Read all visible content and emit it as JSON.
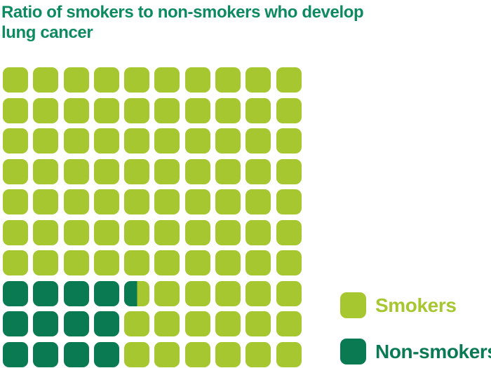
{
  "title": {
    "full_text": "Ratio of smokers to non-smokers who develop lung cancer",
    "line1": "Ratio of smokers to non-smokers who develop",
    "line2": "lung cancer"
  },
  "colors": {
    "background": "#ffffff",
    "smokers": "#a6c72f",
    "non_smokers": "#0a7a53",
    "title_text": "#0e8a61"
  },
  "legend": {
    "items": [
      {
        "label": "Smokers",
        "color": "#a6c72f"
      },
      {
        "label": "Non-smokers",
        "color": "#0a7a53"
      }
    ]
  },
  "chart_data": {
    "type": "waffle",
    "title": "Ratio of smokers to non-smokers who develop lung cancer",
    "grid": {
      "rows": 10,
      "columns": 10,
      "total_cells": 100,
      "cell_unit_percent": 1
    },
    "series": [
      {
        "name": "Smokers",
        "cells": 87.5,
        "percent": 87.5,
        "color": "#a6c72f"
      },
      {
        "name": "Non-smokers",
        "cells": 12.5,
        "percent": 12.5,
        "color": "#0a7a53"
      }
    ],
    "ratio_smokers_to_non_smokers": "7:1",
    "legend_position": "bottom-right",
    "rows_pattern": [
      "SSSSSSSSSS",
      "SSSSSSSSSS",
      "SSSSSSSSSS",
      "SSSSSSSSSS",
      "SSSSSSSSSS",
      "SSSSSSSSSS",
      "SSSSSSSSSS",
      "NNNNHSSSSS",
      "NNNNSSSSSS",
      "NNNNSSSSSS"
    ],
    "pattern_key": {
      "S": "Smokers",
      "N": "Non-smokers",
      "H": "half Non-smokers / half Smokers"
    }
  }
}
